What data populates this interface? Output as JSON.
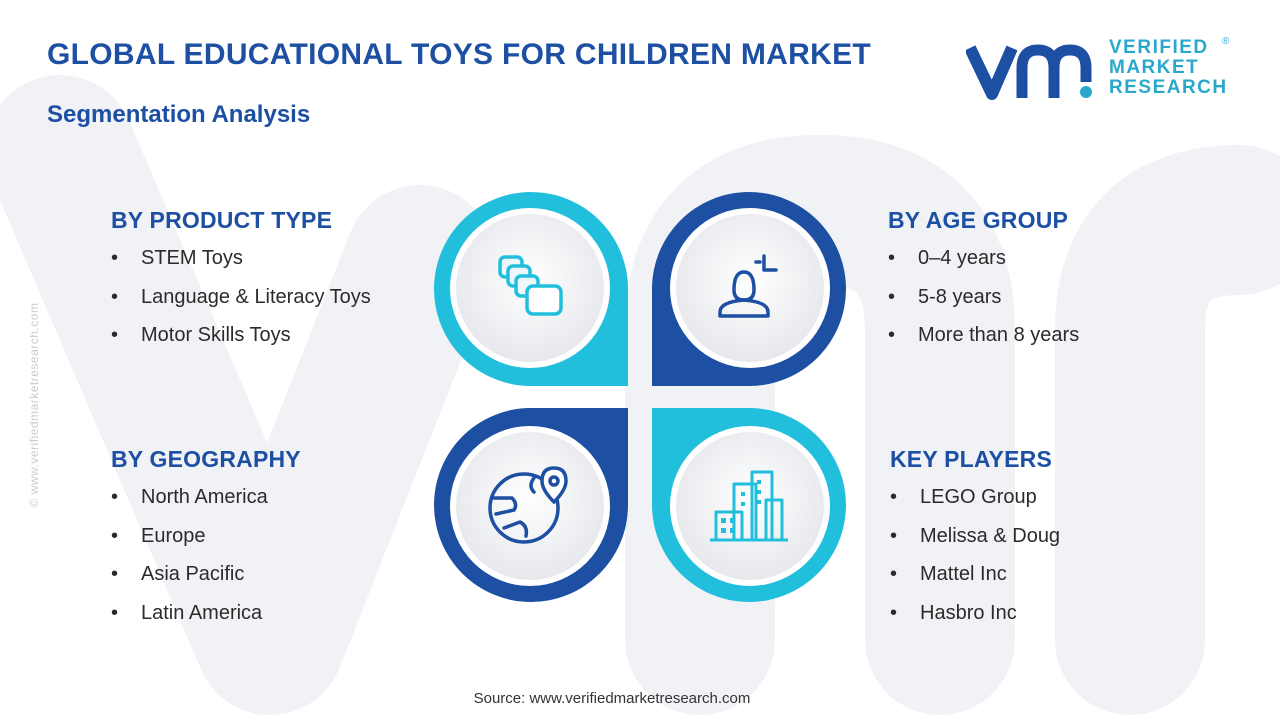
{
  "header": {
    "title": "GLOBAL EDUCATIONAL TOYS FOR CHILDREN MARKET",
    "subtitle": "Segmentation Analysis"
  },
  "logo": {
    "line1": "VERIFIED",
    "line2": "MARKET",
    "line3": "RESEARCH",
    "registered": "®"
  },
  "side_watermark": "© www.verifiedmarketresearch.com",
  "segments": {
    "product_type": {
      "heading": "BY PRODUCT TYPE",
      "items": [
        "STEM Toys",
        "Language & Literacy Toys",
        "Motor Skills Toys"
      ]
    },
    "age_group": {
      "heading": "BY AGE GROUP",
      "items": [
        "0–4 years",
        "5-8 years",
        "More than 8 years"
      ]
    },
    "geography": {
      "heading": "BY GEOGRAPHY",
      "items": [
        "North America",
        "Europe",
        "Asia Pacific",
        "Latin America"
      ]
    },
    "key_players": {
      "heading": "KEY PLAYERS",
      "items": [
        "LEGO Group",
        "Melissa & Doug",
        "Mattel Inc",
        "Hasbro Inc"
      ]
    }
  },
  "icons": {
    "top_left": "blocks-icon",
    "top_right": "person-icon",
    "bottom_left": "globe-pin-icon",
    "bottom_right": "buildings-icon"
  },
  "colors": {
    "dark_blue": "#1d4fa3",
    "cyan": "#21bfdc",
    "watermark": "#f1f3f6"
  },
  "source": "Source: www.verifiedmarketresearch.com"
}
